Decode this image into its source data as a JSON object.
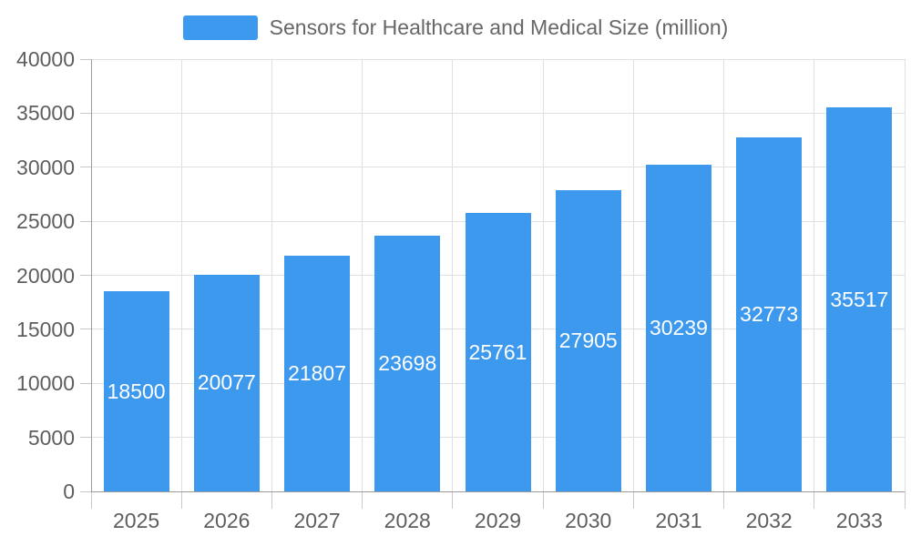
{
  "chart_data": {
    "type": "bar",
    "title": "Sensors for Healthcare and Medical Size (million)",
    "legend_position": "top",
    "categories": [
      "2025",
      "2026",
      "2027",
      "2028",
      "2029",
      "2030",
      "2031",
      "2032",
      "2033"
    ],
    "series": [
      {
        "name": "Sensors for Healthcare and Medical Size (million)",
        "values": [
          18500,
          20077,
          21807,
          23698,
          25761,
          27905,
          30239,
          32773,
          35517
        ]
      }
    ],
    "values": [
      18500,
      20077,
      21807,
      23698,
      25761,
      27905,
      30239,
      32773,
      35517
    ],
    "xlabel": "",
    "ylabel": "",
    "ylim": [
      0,
      40000
    ],
    "y_ticks": [
      0,
      5000,
      10000,
      15000,
      20000,
      25000,
      30000,
      35000,
      40000
    ],
    "grid": true,
    "value_labels_inside_bars": true,
    "colors": {
      "bar": "#3D99EE",
      "bar_label": "#FFFFFF",
      "axis_line": "#9B9B9B",
      "gridline": "#E0E0E0",
      "tick": "#C8C8C8",
      "axis_text": "#5E5E5E",
      "legend_text": "#676767",
      "background": "#FFFFFF"
    }
  }
}
